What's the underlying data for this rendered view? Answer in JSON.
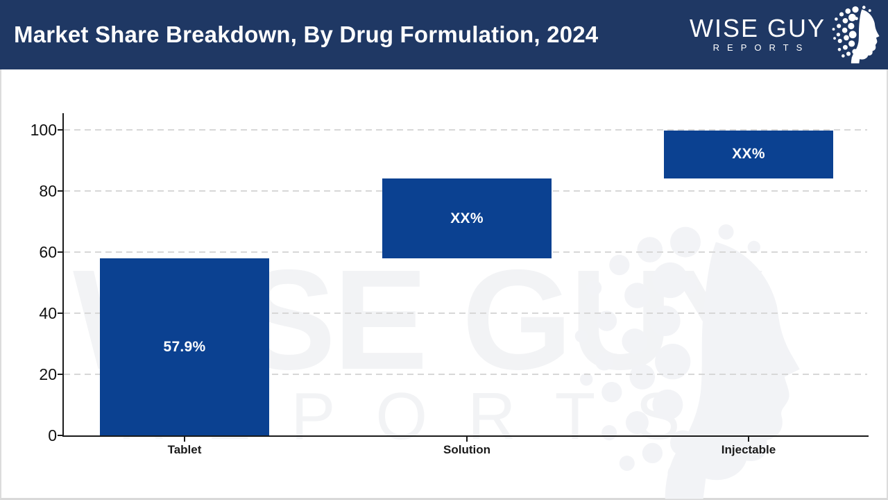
{
  "header": {
    "title": "Market Share Breakdown, By Drug Formulation, 2024",
    "logo": {
      "line1": "WISE GUY",
      "line2": "REPORTS"
    }
  },
  "watermark": {
    "line1": "WISE GUY",
    "line2": "REPORTS"
  },
  "colors": {
    "header_background": "#1f3864",
    "bar_blue": "#0b4191",
    "gridline_gray": "#d7d7d7",
    "watermark_gray": "#f2f3f5",
    "axis_black": "#1a1a1a"
  },
  "chart_data": {
    "type": "bar",
    "subtype": "stacked-waterfall",
    "title": "Market Share Breakdown, By Drug Formulation, 2024",
    "categories": [
      "Tablet",
      "Solution",
      "Injectable"
    ],
    "segments": [
      {
        "category": "Tablet",
        "start": 0,
        "end": 57.9,
        "label": "57.9%"
      },
      {
        "category": "Solution",
        "start": 57.9,
        "end": 84.1,
        "label": "XX%"
      },
      {
        "category": "Injectable",
        "start": 84.1,
        "end": 99.8,
        "label": "XX%"
      }
    ],
    "y_ticks": [
      0,
      20,
      40,
      60,
      80,
      100
    ],
    "ylim": [
      0,
      105
    ],
    "xlabel": "",
    "ylabel": "",
    "grid": "dashed-horizontal",
    "legend": "none",
    "bar_color": "#0b4191",
    "value_label_color": "#ffffff"
  }
}
